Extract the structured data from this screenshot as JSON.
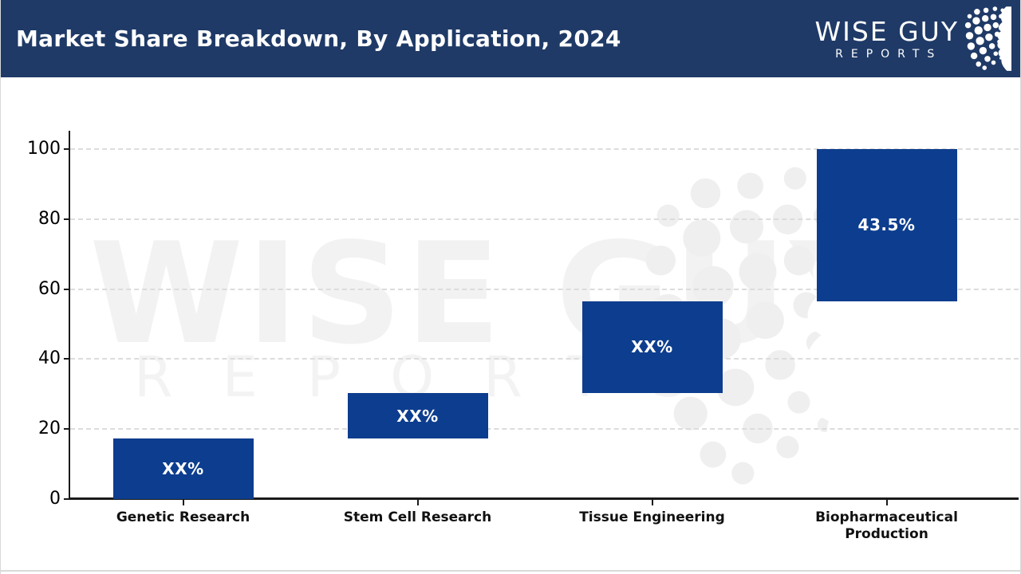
{
  "header": {
    "title": "Market Share Breakdown, By Application, 2024",
    "logo": {
      "brand_line1": "WISE GUY",
      "brand_line2": "REPORTS",
      "face_icon": "dotted-head-profile"
    }
  },
  "watermark": {
    "line1": "WISE GUY",
    "line2": "REPORTS",
    "face_icon": "dotted-head-profile"
  },
  "colors": {
    "header_bg": "#1f3a67",
    "header_text": "#ffffff",
    "bar": "#0d3d8e",
    "bar_label": "#ffffff",
    "axis": "#1a1a1a",
    "gridline": "#dcdcdc",
    "tick_label": "#000000",
    "watermark": "#f2f2f2"
  },
  "chart_data": {
    "type": "bar",
    "subtype": "floating-waterfall",
    "title": "Market Share Breakdown, By Application, 2024",
    "categories": [
      "Genetic Research",
      "Stem Cell Research",
      "Tissue Engineering",
      "Biopharmaceutical Production"
    ],
    "series": [
      {
        "name": "Market Share (%)",
        "segments": [
          {
            "category": "Genetic Research",
            "start": 0,
            "end": 17.3,
            "value": 17.3,
            "label": "XX%"
          },
          {
            "category": "Stem Cell Research",
            "start": 17.3,
            "end": 30.3,
            "value": 13.0,
            "label": "XX%"
          },
          {
            "category": "Tissue Engineering",
            "start": 30.3,
            "end": 56.5,
            "value": 26.2,
            "label": "XX%"
          },
          {
            "category": "Biopharmaceutical Production",
            "start": 56.5,
            "end": 100,
            "value": 43.5,
            "label": "43.5%"
          }
        ]
      }
    ],
    "xlabel": "",
    "ylabel": "",
    "ylim": [
      0,
      100
    ],
    "yticks": [
      0,
      20,
      40,
      60,
      80,
      100
    ],
    "grid": {
      "horizontal": true,
      "style": "dashed"
    },
    "legend": "none"
  }
}
